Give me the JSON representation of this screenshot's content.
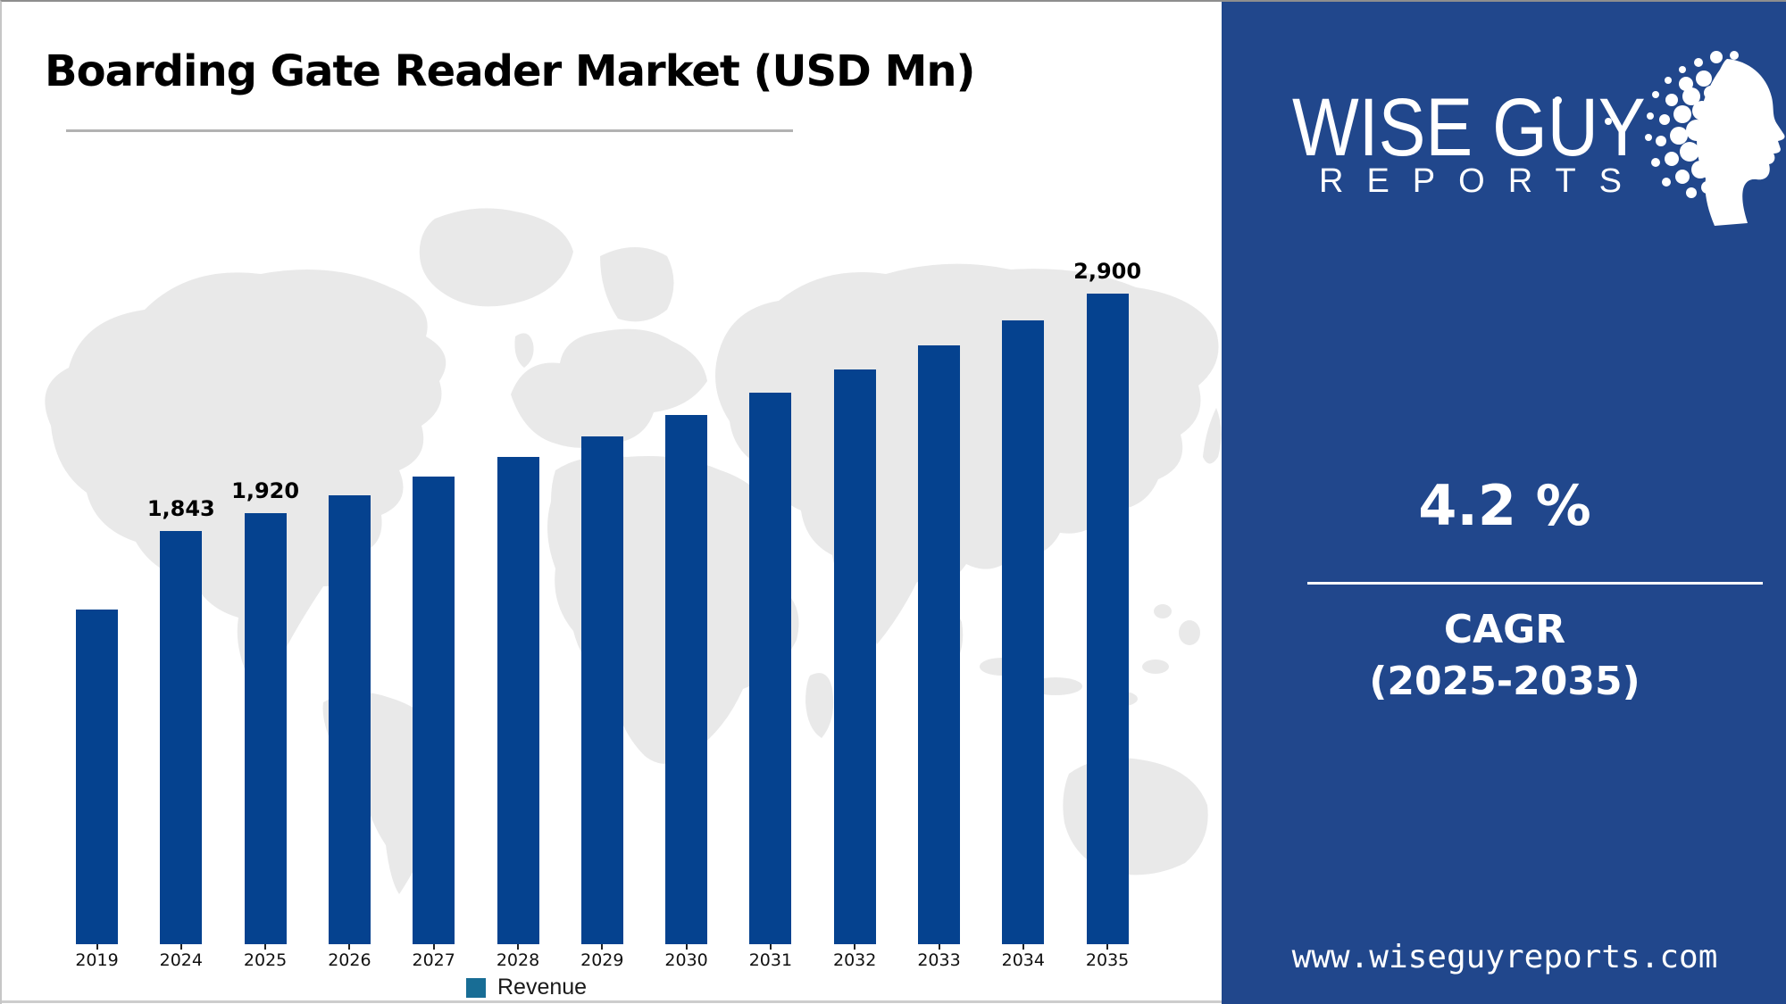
{
  "title": "Boarding Gate Reader Market (USD Mn)",
  "chart_data": {
    "type": "bar",
    "title": "Boarding Gate Reader Market (USD Mn)",
    "unit": "USD Mn",
    "categories": [
      "2019",
      "2024",
      "2025",
      "2026",
      "2027",
      "2028",
      "2029",
      "2030",
      "2031",
      "2032",
      "2033",
      "2034",
      "2035"
    ],
    "values": [
      1490,
      1843,
      1920,
      2001,
      2085,
      2172,
      2263,
      2358,
      2457,
      2560,
      2668,
      2780,
      2900
    ],
    "bar_labels": [
      "",
      "1,843",
      "1,920",
      "",
      "",
      "",
      "",
      "",
      "",
      "",
      "",
      "",
      "2,900"
    ],
    "series_name": "Revenue",
    "xlabel": "",
    "ylabel": "",
    "ylim": [
      0,
      3000
    ],
    "grid": false,
    "legend_position": "bottom",
    "bar_color": "#05428f"
  },
  "legend": {
    "label": "Revenue",
    "swatch_color": "#186d95"
  },
  "panel": {
    "logo_line1": "WISE GUY",
    "logo_line2": "REPORTS",
    "cagr_value": "4.2 %",
    "cagr_line1": "CAGR",
    "cagr_line2": "(2025-2035)",
    "website": "www.wiseguyreports.com",
    "bg_color": "#21478c"
  },
  "colors": {
    "bar": "#05428f",
    "panel_background": "#21478c",
    "legend_swatch": "#186d95",
    "map_watermark": "#e9e9e9",
    "title_underline": "#b2b2b2",
    "title_text": "#000000",
    "panel_text": "#ffffff"
  },
  "icons": {
    "logo_head": "dotted-head-profile-icon"
  }
}
